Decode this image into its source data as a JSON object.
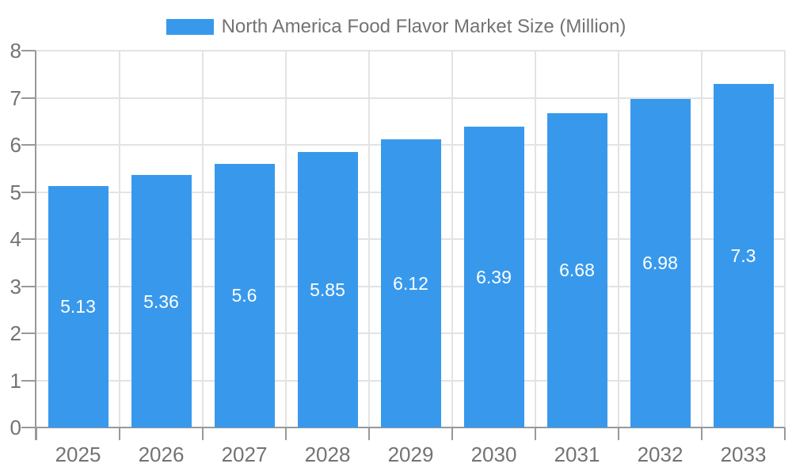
{
  "chart_data": {
    "type": "bar",
    "title": "North America Food Flavor Market Size (Million)",
    "legend_entries": [
      "North America Food Flavor Market Size (Million)"
    ],
    "legend_position": "top",
    "categories": [
      "2025",
      "2026",
      "2027",
      "2028",
      "2029",
      "2030",
      "2031",
      "2032",
      "2033"
    ],
    "values": [
      5.13,
      5.36,
      5.6,
      5.85,
      6.12,
      6.39,
      6.68,
      6.98,
      7.3
    ],
    "value_labels": [
      "5.13",
      "5.36",
      "5.6",
      "5.85",
      "6.12",
      "6.39",
      "6.68",
      "6.98",
      "7.3"
    ],
    "xlabel": "",
    "ylabel": "",
    "ylim": [
      0,
      8
    ],
    "yticks": [
      0,
      1,
      2,
      3,
      4,
      5,
      6,
      7,
      8
    ],
    "grid": true,
    "colors": {
      "bar": "#3899ec",
      "grid": "#e3e3e3",
      "axis": "#999999",
      "tick_text": "#737373",
      "bar_label": "#ffffff",
      "background": "#ffffff"
    }
  }
}
